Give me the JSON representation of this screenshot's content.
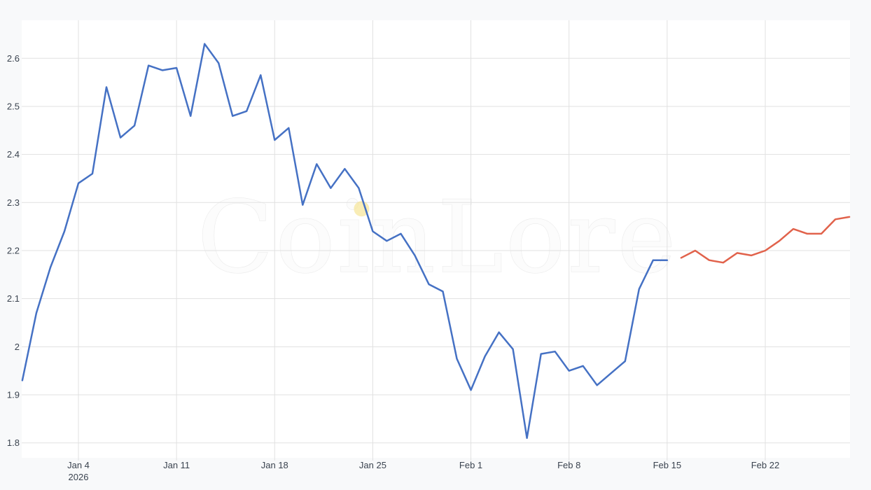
{
  "page": {
    "background_color": "#f8f9fa",
    "plot_background_color": "#ffffff",
    "gridline_color": "#e1e1e1",
    "tick_label_color": "#3a434f"
  },
  "chart_data": {
    "type": "line",
    "title": "",
    "watermark_text": "CoinLore",
    "grid": true,
    "legend": "none",
    "x_axis": {
      "unit": "days (day 0 = 4 days before the 'Jan 4 2026' tick, i.e. Dec 31)",
      "domain_days": [
        0,
        59
      ],
      "tick_days": [
        4,
        11,
        18,
        25,
        32,
        39,
        46,
        53
      ],
      "tick_labels": [
        "Jan 4",
        "Jan 11",
        "Jan 18",
        "Jan 25",
        "Feb 1",
        "Feb 8",
        "Feb 15",
        "Feb 22"
      ],
      "year_label": "2026",
      "year_label_under_tick": "Jan 4"
    },
    "y_axis": {
      "range": [
        1.769,
        2.679
      ],
      "tick_values": [
        1.8,
        1.9,
        2.0,
        2.1,
        2.2,
        2.3,
        2.4,
        2.5,
        2.6
      ],
      "tick_labels": [
        "1.8",
        "1.9",
        "2",
        "2.1",
        "2.2",
        "2.3",
        "2.4",
        "2.5",
        "2.6"
      ]
    },
    "series": [
      {
        "name": "historical-price",
        "color": "#4571c4",
        "stroke_width": 2.5,
        "start_day": 0,
        "values": [
          1.93,
          2.07,
          2.165,
          2.24,
          2.34,
          2.36,
          2.54,
          2.435,
          2.46,
          2.585,
          2.575,
          2.58,
          2.48,
          2.63,
          2.59,
          2.48,
          2.49,
          2.565,
          2.43,
          2.455,
          2.295,
          2.38,
          2.33,
          2.37,
          2.33,
          2.24,
          2.22,
          2.235,
          2.19,
          2.13,
          2.115,
          1.975,
          1.91,
          1.98,
          2.03,
          1.995,
          1.81,
          1.985,
          1.99,
          1.95,
          1.96,
          1.92,
          1.945,
          1.97,
          2.12,
          2.18,
          2.18
        ]
      },
      {
        "name": "forecast-price",
        "color": "#e1624b",
        "stroke_width": 2.5,
        "start_day": 47,
        "values": [
          2.185,
          2.2,
          2.18,
          2.175,
          2.195,
          2.19,
          2.2,
          2.22,
          2.245,
          2.235,
          2.235,
          2.265,
          2.27
        ]
      }
    ],
    "highlight_marker": {
      "day": 24.2,
      "value": 2.287,
      "color": "#f6e289",
      "opacity": 0.62,
      "radius": 11
    }
  }
}
